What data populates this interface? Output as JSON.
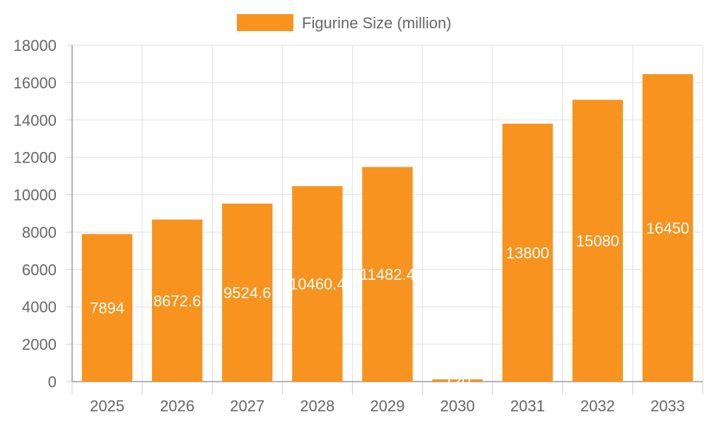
{
  "chart_data": {
    "type": "bar",
    "categories": [
      "2025",
      "2026",
      "2027",
      "2028",
      "2029",
      "2030",
      "2031",
      "2032",
      "2033"
    ],
    "series": [
      {
        "name": "Figurine Size (million)",
        "color": "#F7931E",
        "values": [
          7894,
          8672.6,
          9524.6,
          10460.4,
          11482.4,
          120,
          13800,
          15080,
          16450
        ],
        "labels": [
          "7894",
          "8672.6",
          "9524.6",
          "10460.4",
          "11482.4",
          "120",
          "13800",
          "15080",
          "16450"
        ]
      }
    ],
    "title": "",
    "xlabel": "",
    "ylabel": "",
    "ylim": [
      0,
      18000
    ],
    "yticks": [
      0,
      2000,
      4000,
      6000,
      8000,
      10000,
      12000,
      14000,
      16000,
      18000
    ],
    "grid": true,
    "legend_position": "top-center",
    "data_labels": true
  }
}
